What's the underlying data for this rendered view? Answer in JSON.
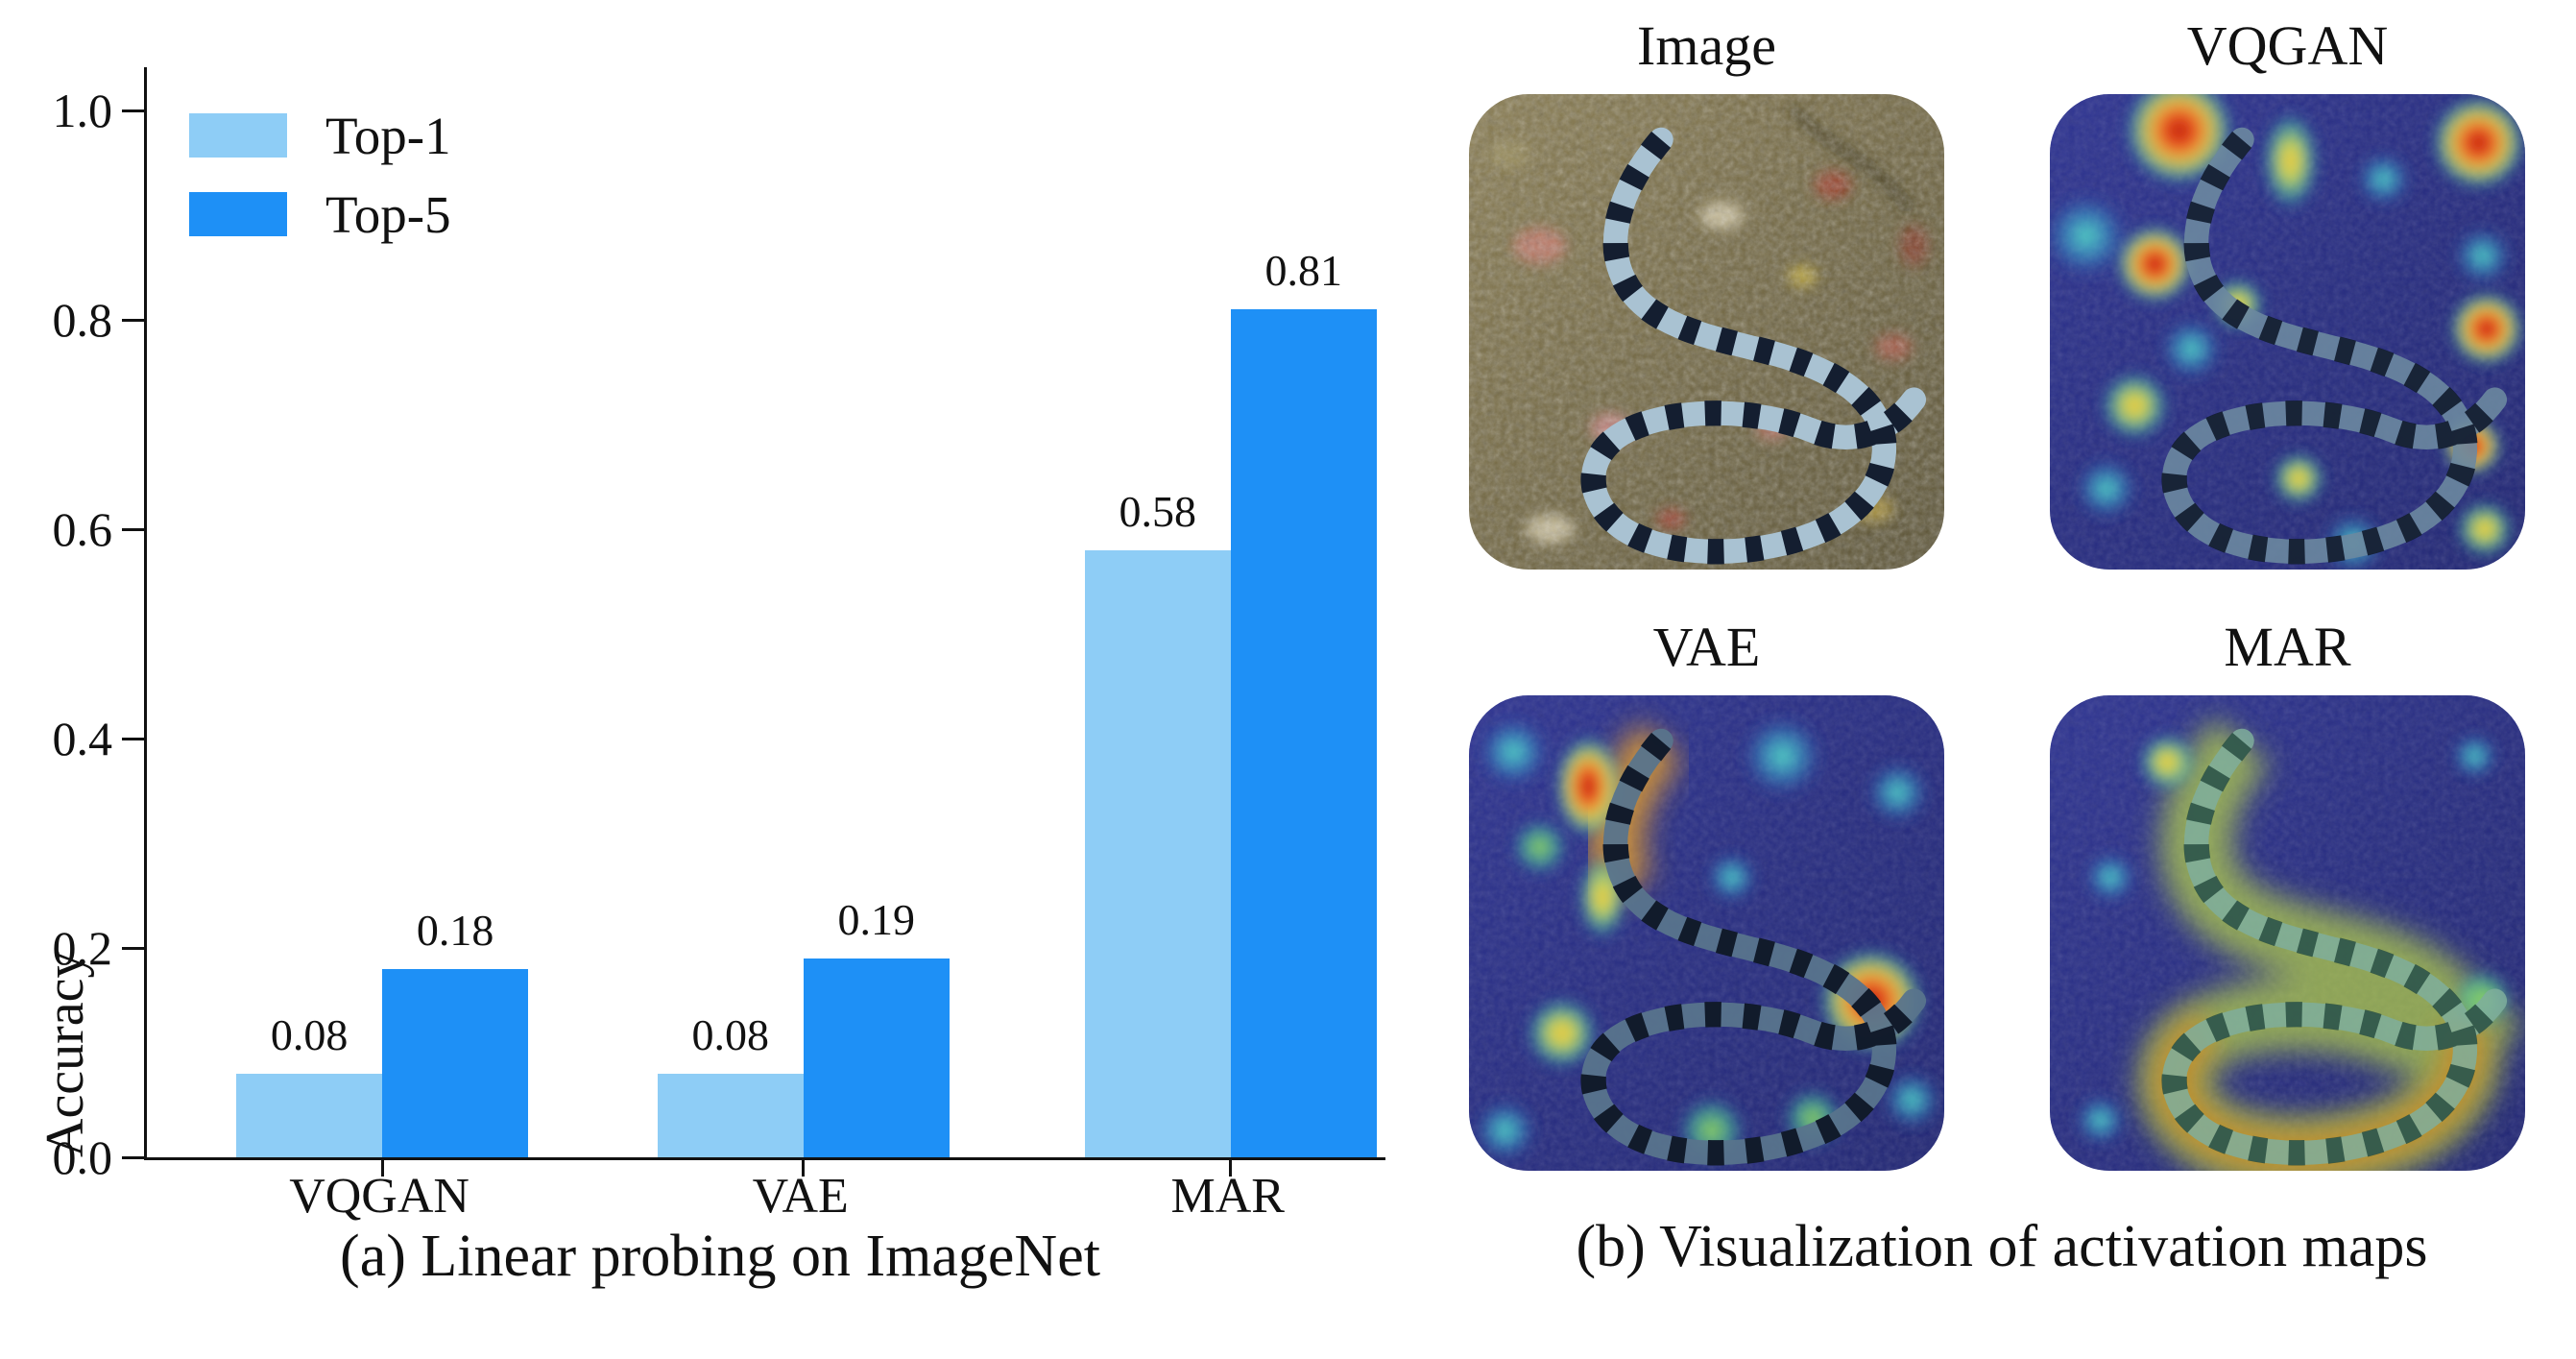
{
  "captions": {
    "left": "(a) Linear probing on ImageNet",
    "right": "(b) Visualization of activation maps"
  },
  "chart_data": {
    "type": "bar",
    "title": "",
    "categories": [
      "VQGAN",
      "VAE",
      "MAR"
    ],
    "series": [
      {
        "name": "Top-1",
        "color": "#8ECDF6",
        "values": [
          0.08,
          0.08,
          0.58
        ]
      },
      {
        "name": "Top-5",
        "color": "#1E90F6",
        "values": [
          0.18,
          0.19,
          0.81
        ]
      }
    ],
    "value_labels": [
      [
        "0.08",
        "0.18"
      ],
      [
        "0.08",
        "0.19"
      ],
      [
        "0.58",
        "0.81"
      ]
    ],
    "xlabel": "",
    "ylabel": "Accuracy",
    "ylim": [
      0.0,
      1.04
    ],
    "yticks": [
      "0.0",
      "0.2",
      "0.4",
      "0.6",
      "0.8",
      "1.0"
    ],
    "grid": false,
    "legend_position": "upper left"
  },
  "viz": {
    "panels": [
      {
        "label": "Image"
      },
      {
        "label": "VQGAN"
      },
      {
        "label": "VAE"
      },
      {
        "label": "MAR"
      }
    ]
  }
}
